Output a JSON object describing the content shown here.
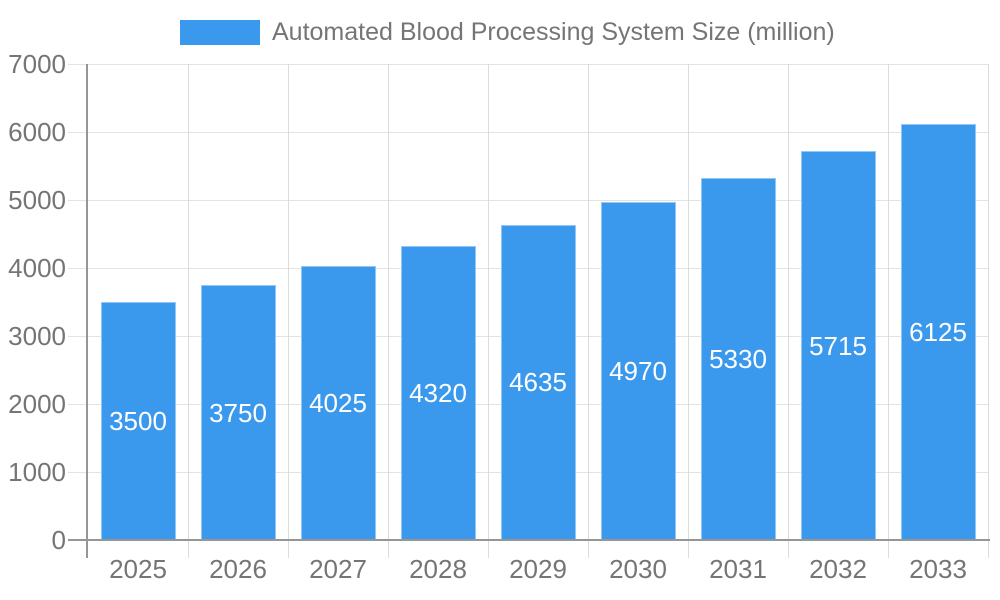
{
  "chart_data": {
    "type": "bar",
    "title": "Automated Blood Processing System Size (million)",
    "legend_position": "top",
    "categories": [
      "2025",
      "2026",
      "2027",
      "2028",
      "2029",
      "2030",
      "2031",
      "2032",
      "2033"
    ],
    "series": [
      {
        "name": "Automated Blood Processing System Size (million)",
        "values": [
          3500,
          3750,
          4025,
          4320,
          4635,
          4970,
          5330,
          5715,
          6125
        ]
      }
    ],
    "bar_value_labels": [
      "3500",
      "3750",
      "4025",
      "4320",
      "4635",
      "4970",
      "5330",
      "5715",
      "6125"
    ],
    "xlabel": "",
    "ylabel": "",
    "ylim": [
      0,
      7000
    ],
    "ytick_interval": 1000,
    "ytick_labels": [
      "0",
      "1000",
      "2000",
      "3000",
      "4000",
      "5000",
      "6000",
      "7000"
    ],
    "grid": "horizontal-and-vertical",
    "colors": {
      "bar": "#3B99ED",
      "bar_label": "#FFFFFF",
      "axis_text": "#757575",
      "axis_line": "#969696",
      "gridline": "#E3E3E3",
      "background": "#FFFFFF"
    }
  }
}
